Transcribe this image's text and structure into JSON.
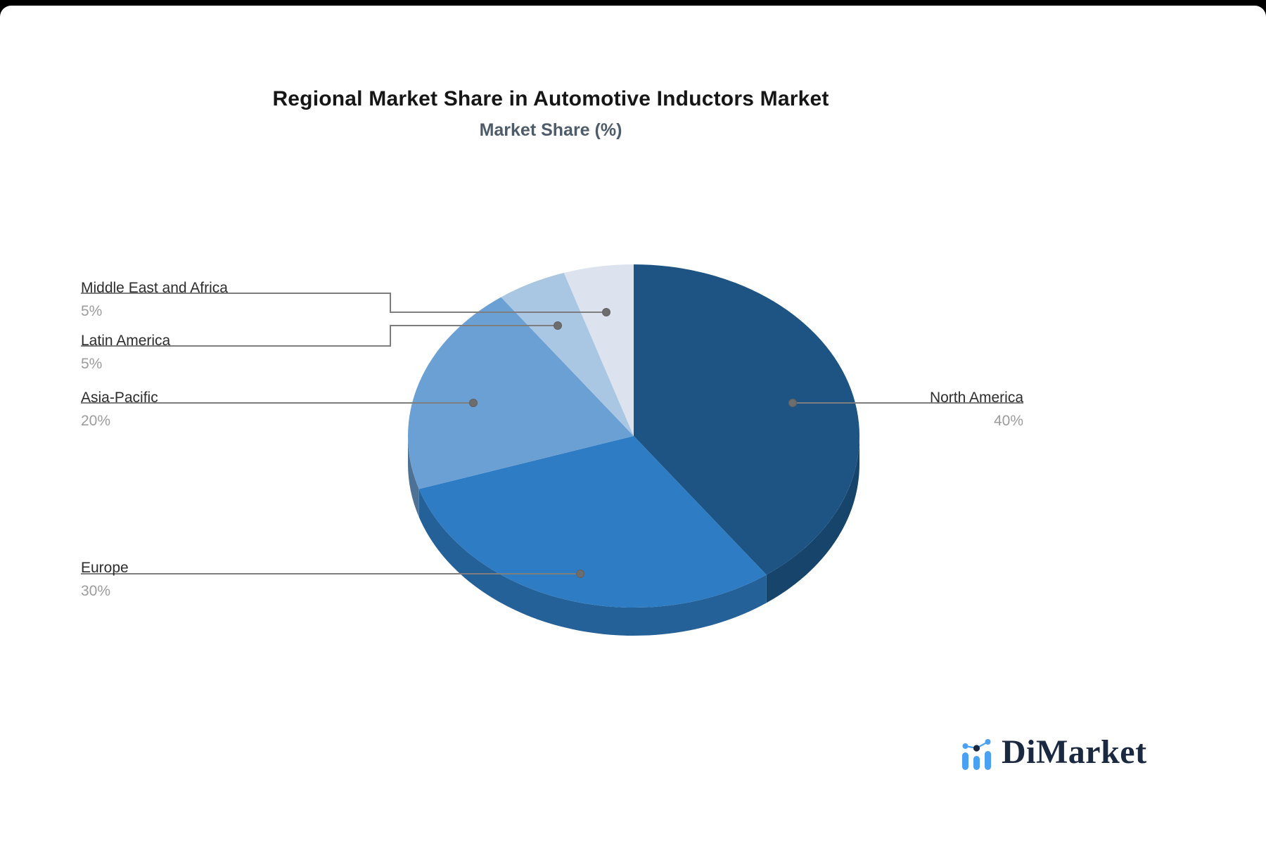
{
  "chart_data": {
    "type": "pie",
    "title": "Regional Market Share in Automotive Inductors Market",
    "subtitle": "Market Share (%)",
    "unit": "%",
    "start_angle_deg": 0,
    "direction": "clockwise",
    "style": "3d",
    "legend_position": "connected-labels",
    "slices": [
      {
        "label": "North America",
        "value": 40,
        "pct_label": "40%",
        "color": "#1d5484",
        "side_color": "#17446b"
      },
      {
        "label": "Europe",
        "value": 30,
        "pct_label": "30%",
        "color": "#2e7cc4",
        "side_color": "#246199"
      },
      {
        "label": "Asia-Pacific",
        "value": 20,
        "pct_label": "20%",
        "color": "#6ba0d4",
        "side_color": "#4e7196"
      },
      {
        "label": "Latin America",
        "value": 5,
        "pct_label": "5%",
        "color": "#a9c6e2",
        "side_color": "#87a4c2"
      },
      {
        "label": "Middle East and Africa",
        "value": 5,
        "pct_label": "5%",
        "color": "#dce3ee",
        "side_color": "#b6c2d2"
      }
    ],
    "leader_line_color": "#7e7e7e",
    "leader_dot_color": "#6d6d6d"
  },
  "branding": {
    "name": "DiMarket",
    "bar_color": "#4aa1f3",
    "text_color": "#1b2940"
  }
}
